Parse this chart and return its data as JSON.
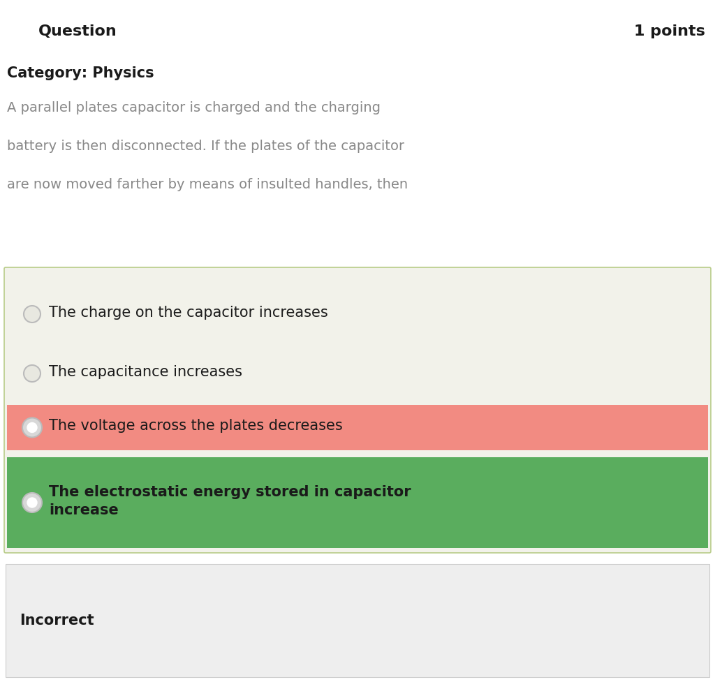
{
  "title_left": "Question",
  "title_right": "1 points",
  "category": "Category: Physics",
  "question_lines": [
    "A parallel plates capacitor is charged and the charging",
    "battery is then disconnected. If the plates of the capacitor",
    "are now moved farther by means of insulted handles, then"
  ],
  "options": [
    {
      "text": "The charge on the capacitor increases",
      "bg_color": null,
      "radio_filled": false,
      "bold": false
    },
    {
      "text": "The capacitance increases",
      "bg_color": null,
      "radio_filled": false,
      "bold": false
    },
    {
      "text": "The voltage across the plates decreases",
      "bg_color": "#f28b82",
      "radio_filled": true,
      "bold": false
    },
    {
      "text": "The electrostatic energy stored in capacitor\nincrease",
      "bg_color": "#5aad5e",
      "radio_filled": true,
      "bold": true
    }
  ],
  "feedback_text": "Incorrect",
  "bg_color_main": "#ffffff",
  "bg_color_options_box": "#f2f2ea",
  "bg_color_feedback": "#eeeeee",
  "options_border_color": "#b8cc88",
  "title_fontsize": 16,
  "category_fontsize": 15,
  "question_fontsize": 14,
  "option_fontsize": 15,
  "feedback_fontsize": 15,
  "fig_width": 10.24,
  "fig_height": 9.77,
  "dpi": 100
}
